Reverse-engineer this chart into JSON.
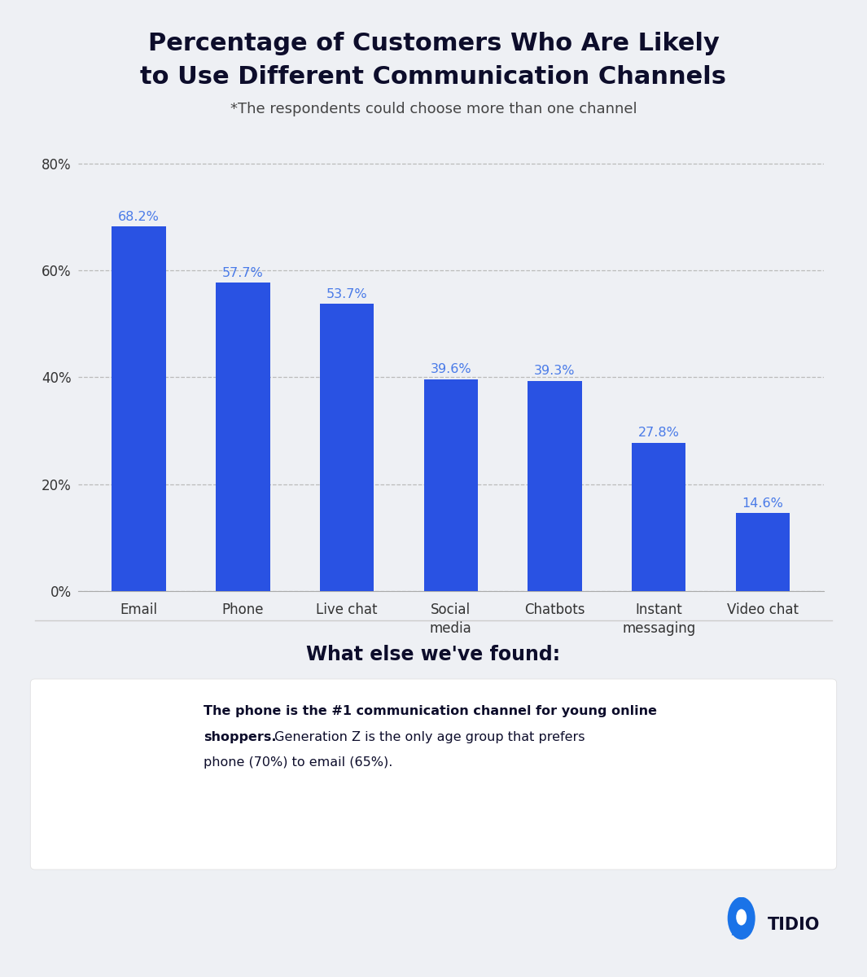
{
  "title_line1": "Percentage of Customers Who Are Likely",
  "title_line2": "to Use Different Communication Channels",
  "subtitle": "*The respondents could choose more than one channel",
  "categories": [
    "Email",
    "Phone",
    "Live chat",
    "Social\nmedia",
    "Chatbots",
    "Instant\nmessaging",
    "Video chat"
  ],
  "values": [
    68.2,
    57.7,
    53.7,
    39.6,
    39.3,
    27.8,
    14.6
  ],
  "bar_color": "#2952e3",
  "label_color": "#4a7be8",
  "background_color": "#eef0f4",
  "ylim": [
    0,
    85
  ],
  "yticks": [
    0,
    20,
    40,
    60,
    80
  ],
  "ytick_labels": [
    "0%",
    "20%",
    "40%",
    "60%",
    "80%"
  ],
  "grid_color": "#bbbbbb",
  "section_title": "What else we've found:",
  "info_text_bold": "The phone is the #1 communication channel for young online shoppers.",
  "info_text_normal": " Generation Z is the only age group that prefers phone (70%) to email (65%).",
  "title_color": "#0d0d2b",
  "subtitle_color": "#444444",
  "medal_blue": "#5b9bd5",
  "medal_blue_dark": "#3a7abf",
  "medal_orange": "#f5a623",
  "phone_color": "#a8c8f0",
  "phone_screen": "#5b9bd5",
  "tidio_blue": "#1a73e8"
}
